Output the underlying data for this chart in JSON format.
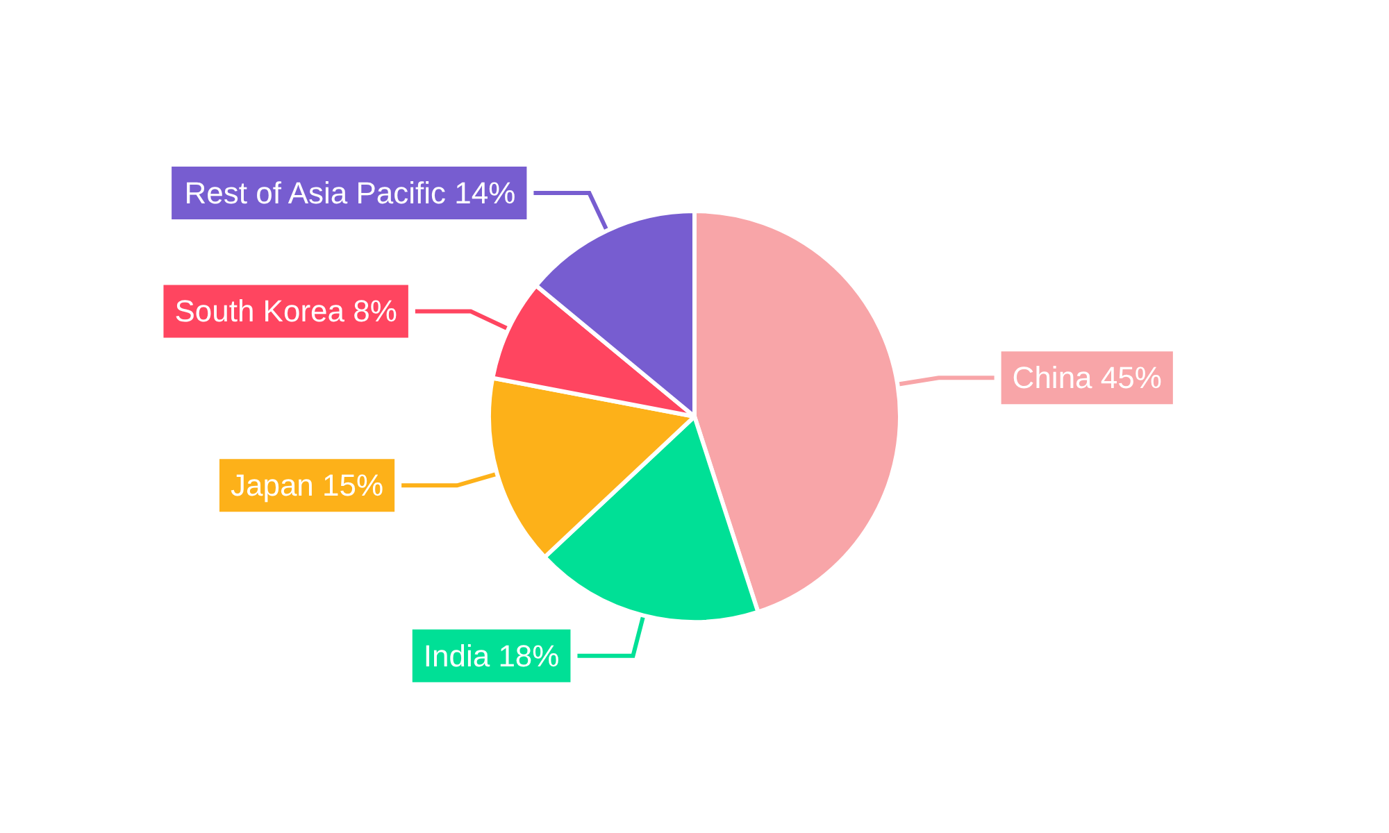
{
  "chart_data": {
    "type": "pie",
    "categories": [
      "China",
      "India",
      "Japan",
      "South Korea",
      "Rest of Asia Pacific"
    ],
    "values": [
      45,
      18,
      15,
      8,
      14
    ],
    "value_labels": [
      "45%",
      "18%",
      "15%",
      "8%",
      "14%"
    ],
    "colors": [
      "#f8a5a8",
      "#00e096",
      "#fdb119",
      "#ff4560",
      "#775dd0"
    ],
    "legend": false
  }
}
